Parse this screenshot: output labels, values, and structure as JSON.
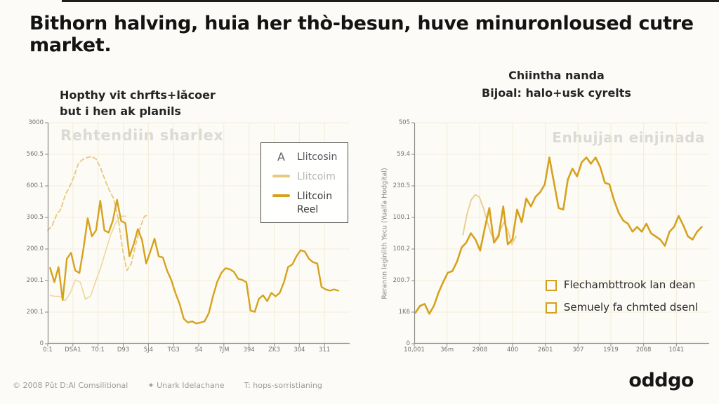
{
  "slide": {
    "title": "Bithorn halving, huia her thò-besun, huve minuronloused cutre market.",
    "footer": {
      "left": "© 2008 Pût D:Al Comsilitional",
      "middle": "✦ Unark Idelachane",
      "right": "T: hops-sorristianing"
    },
    "logo_text": "oddgo"
  },
  "colors": {
    "accent_gold_dark": "#d6a21e",
    "accent_gold_light": "#e8c87e",
    "accent_gold_pale": "#ecd79e",
    "watermark_gray": "#dbdad5",
    "gridline": "#f3ecd8",
    "axis": "#8a8a84",
    "tick_text": "#72726c",
    "title_text": "#131313",
    "footer_text": "#9b9b96"
  },
  "chart_data": [
    {
      "type": "line",
      "title_line1": "Hopthy vit chrfts+lǎcoer",
      "title_line2": "but i hen ak planils",
      "watermark": "Rehtendiin sharlex",
      "grid": true,
      "ylim": [
        0,
        7
      ],
      "y_tick_labels_top_to_bottom": [
        "3000",
        "560.5",
        "600.1",
        "300.5",
        "200.0",
        "200.1",
        "200.1",
        "0"
      ],
      "x_tick_labels": [
        "0:1",
        "DSA1",
        "T0:1",
        "D93",
        "5J4",
        "TG3",
        "S4",
        "7JM",
        "394",
        "ZK3",
        "304",
        "311"
      ],
      "legend_position": "upper right",
      "legend": [
        {
          "symbol": "A",
          "label": "Llitcosin",
          "label_color": "#55555f"
        },
        {
          "symbol": "line",
          "color": "#e8c87e",
          "label": "Llitcoim",
          "label_color": "#b9b6ae"
        },
        {
          "symbol": "line",
          "color": "#d6a21e",
          "label": "Llitcoin Reel",
          "label_color": "#3a3a3a"
        }
      ],
      "series": [
        {
          "name": "Llitcoim",
          "color": "#e8c87e",
          "width": 1.8,
          "dash": "6 4",
          "x_range": [
            0,
            0.335
          ],
          "values": [
            3.59,
            3.74,
            4.08,
            4.27,
            4.72,
            4.98,
            5.31,
            5.72,
            5.84,
            5.9,
            5.93,
            5.85,
            5.57,
            5.2,
            4.86,
            4.6,
            3.97,
            3.0,
            2.32,
            2.54,
            3.14,
            3.67,
            4.04,
            4.08
          ]
        },
        {
          "name": "Llitcosin",
          "color": "#ecd79e",
          "width": 1.6,
          "dash": "",
          "x_range": [
            0.008,
            0.258
          ],
          "values": [
            1.53,
            1.5,
            1.5,
            1.36,
            1.61,
            2.02,
            1.95,
            1.41,
            1.5,
            1.95,
            2.39,
            2.92,
            3.44,
            3.82,
            4.04,
            4.04
          ]
        },
        {
          "name": "Llitcoin Reel",
          "color": "#d6a21e",
          "width": 2.4,
          "dash": "",
          "x_range": [
            0.008,
            0.962
          ],
          "values": [
            2.4,
            1.95,
            2.43,
            1.38,
            2.69,
            2.88,
            2.32,
            2.24,
            3.03,
            3.97,
            3.4,
            3.59,
            4.53,
            3.59,
            3.52,
            3.89,
            4.56,
            3.89,
            3.82,
            2.77,
            3.14,
            3.63,
            3.29,
            2.54,
            2.92,
            3.33,
            2.77,
            2.73,
            2.32,
            2.02,
            1.61,
            1.27,
            0.79,
            0.67,
            0.71,
            0.64,
            0.67,
            0.71,
            0.97,
            1.5,
            1.95,
            2.24,
            2.39,
            2.36,
            2.28,
            2.06,
            2.02,
            1.95,
            1.05,
            1.01,
            1.42,
            1.53,
            1.35,
            1.61,
            1.5,
            1.61,
            1.95,
            2.43,
            2.51,
            2.77,
            2.96,
            2.92,
            2.69,
            2.58,
            2.54,
            1.8,
            1.72,
            1.68,
            1.72,
            1.68
          ]
        }
      ]
    },
    {
      "type": "line",
      "title_line1": "Chiintha nanda",
      "title_line2": "Bijoal: halo+usk cyrelts",
      "watermark": "Enhujjan einjinada",
      "y_axis_label": "Rerannn leginlith Yecu (Yualfa Hodgital)",
      "grid": true,
      "ylim": [
        0,
        7
      ],
      "y_tick_labels_top_to_bottom": [
        "505",
        "59.4",
        "230.5",
        "100.1",
        "100.2",
        "200.7",
        "1K6",
        "0"
      ],
      "x_tick_labels": [
        "10,001",
        "36m",
        "2908",
        "400",
        "2601",
        "307",
        "1919",
        "2068",
        "1041"
      ],
      "legend_position": "lower right",
      "legend": [
        {
          "symbol": "square",
          "color": "#d2a01c",
          "label": "Flechambttrook lan dean",
          "label_color": "#2b2b2b"
        },
        {
          "symbol": "square",
          "color": "#d2a01c",
          "label": "Semuely fa chmted dsenl",
          "label_color": "#2b2b2b"
        }
      ],
      "series": [
        {
          "name": "Semuely fa chmted dsenl",
          "color": "#ead096",
          "width": 2,
          "dash": "",
          "x_range": [
            0.165,
            0.345
          ],
          "values": [
            3.45,
            4.1,
            4.55,
            4.72,
            4.65,
            4.3,
            3.85,
            3.45,
            3.3,
            3.55,
            3.85,
            3.6,
            3.15,
            3.4
          ]
        },
        {
          "name": "Flechambttrook lan dean",
          "color": "#d6a21e",
          "width": 2.6,
          "dash": "",
          "x_range": [
            0.004,
            0.975
          ],
          "values": [
            0.98,
            1.2,
            1.26,
            0.95,
            1.2,
            1.62,
            1.95,
            2.25,
            2.3,
            2.6,
            3.05,
            3.2,
            3.5,
            3.3,
            2.95,
            3.65,
            4.3,
            3.2,
            3.4,
            4.35,
            3.15,
            3.3,
            4.25,
            3.85,
            4.6,
            4.35,
            4.65,
            4.8,
            5.05,
            5.9,
            5.1,
            4.3,
            4.25,
            5.2,
            5.55,
            5.3,
            5.75,
            5.9,
            5.7,
            5.9,
            5.6,
            5.1,
            5.05,
            4.55,
            4.15,
            3.9,
            3.8,
            3.55,
            3.7,
            3.55,
            3.8,
            3.5,
            3.4,
            3.3,
            3.1,
            3.55,
            3.7,
            4.05,
            3.75,
            3.4,
            3.3,
            3.55,
            3.7
          ]
        }
      ]
    }
  ]
}
